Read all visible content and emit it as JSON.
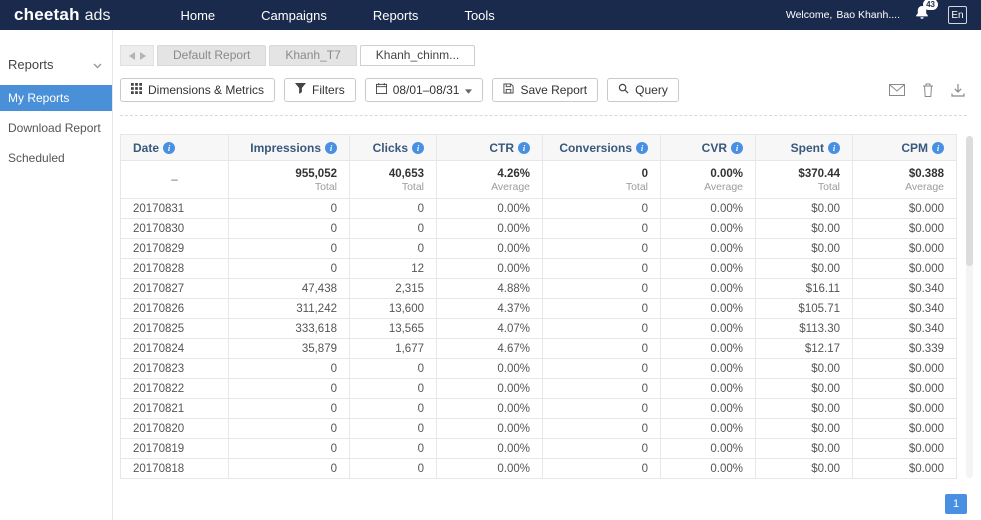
{
  "navbar": {
    "logo_bold": "cheetah",
    "logo_light": "ads",
    "items": [
      "Home",
      "Campaigns",
      "Reports",
      "Tools"
    ],
    "welcome_label": "Welcome,",
    "username": "Bao Khanh....",
    "notification_count": "43",
    "language": "En"
  },
  "sidebar": {
    "section_label": "Reports",
    "items": [
      {
        "label": "My Reports",
        "active": true
      },
      {
        "label": "Download Report",
        "active": false
      },
      {
        "label": "Scheduled",
        "active": false
      }
    ]
  },
  "tabs": [
    {
      "label": "Default Report",
      "active": false
    },
    {
      "label": "Khanh_T7",
      "active": false
    },
    {
      "label": "Khanh_chinm...",
      "active": true
    }
  ],
  "toolbar": {
    "dimensions_metrics_label": "Dimensions & Metrics",
    "filters_label": "Filters",
    "date_range_label": "08/01–08/31",
    "save_report_label": "Save Report",
    "query_label": "Query",
    "icons": [
      "grid-icon",
      "filter-icon",
      "calendar-icon",
      "caret-down-icon",
      "save-icon",
      "search-icon",
      "mail-icon",
      "trash-icon",
      "download-icon"
    ]
  },
  "table": {
    "columns": [
      "Date",
      "Impressions",
      "Clicks",
      "CTR",
      "Conversions",
      "CVR",
      "Spent",
      "CPM"
    ],
    "info_icon_glyph": "i",
    "totals": {
      "date": "–",
      "values": [
        "955,052",
        "40,653",
        "4.26%",
        "0",
        "0.00%",
        "$370.44",
        "$0.388"
      ],
      "sublabels": [
        "Total",
        "Total",
        "Average",
        "Total",
        "Average",
        "Total",
        "Average"
      ]
    },
    "rows": [
      [
        "20170831",
        "0",
        "0",
        "0.00%",
        "0",
        "0.00%",
        "$0.00",
        "$0.000"
      ],
      [
        "20170830",
        "0",
        "0",
        "0.00%",
        "0",
        "0.00%",
        "$0.00",
        "$0.000"
      ],
      [
        "20170829",
        "0",
        "0",
        "0.00%",
        "0",
        "0.00%",
        "$0.00",
        "$0.000"
      ],
      [
        "20170828",
        "0",
        "12",
        "0.00%",
        "0",
        "0.00%",
        "$0.00",
        "$0.000"
      ],
      [
        "20170827",
        "47,438",
        "2,315",
        "4.88%",
        "0",
        "0.00%",
        "$16.11",
        "$0.340"
      ],
      [
        "20170826",
        "311,242",
        "13,600",
        "4.37%",
        "0",
        "0.00%",
        "$105.71",
        "$0.340"
      ],
      [
        "20170825",
        "333,618",
        "13,565",
        "4.07%",
        "0",
        "0.00%",
        "$113.30",
        "$0.340"
      ],
      [
        "20170824",
        "35,879",
        "1,677",
        "4.67%",
        "0",
        "0.00%",
        "$12.17",
        "$0.339"
      ],
      [
        "20170823",
        "0",
        "0",
        "0.00%",
        "0",
        "0.00%",
        "$0.00",
        "$0.000"
      ],
      [
        "20170822",
        "0",
        "0",
        "0.00%",
        "0",
        "0.00%",
        "$0.00",
        "$0.000"
      ],
      [
        "20170821",
        "0",
        "0",
        "0.00%",
        "0",
        "0.00%",
        "$0.00",
        "$0.000"
      ],
      [
        "20170820",
        "0",
        "0",
        "0.00%",
        "0",
        "0.00%",
        "$0.00",
        "$0.000"
      ],
      [
        "20170819",
        "0",
        "0",
        "0.00%",
        "0",
        "0.00%",
        "$0.00",
        "$0.000"
      ],
      [
        "20170818",
        "0",
        "0",
        "0.00%",
        "0",
        "0.00%",
        "$0.00",
        "$0.000"
      ]
    ]
  },
  "pagination": {
    "current_page": "1"
  },
  "colors": {
    "navbar_bg": "#1a2a4c",
    "accent_blue": "#4a90e2",
    "sidebar_active_bg": "#4a90d9",
    "table_header_text": "#38587c"
  }
}
